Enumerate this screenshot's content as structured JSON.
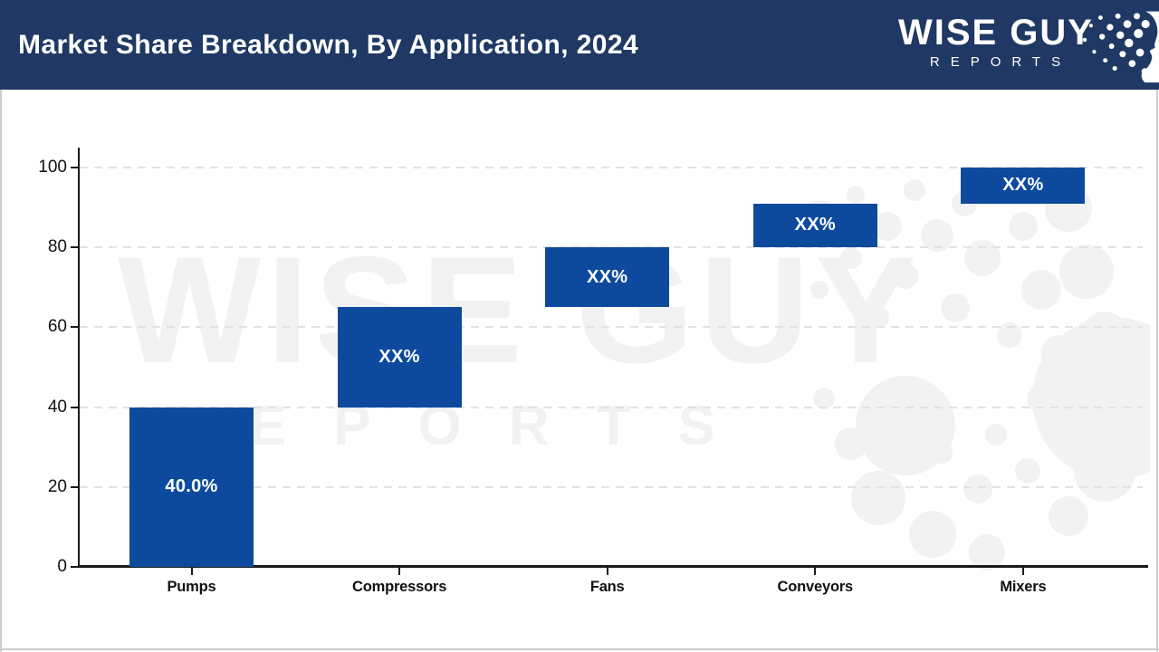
{
  "header": {
    "title": "Market Share Breakdown, By Application, 2024",
    "background": "#1f3864",
    "logo": {
      "primary": "WISE GUY",
      "secondary": "REPORTS",
      "face_icon": "dotted-face-profile"
    }
  },
  "watermark": {
    "primary": "WISE GUY",
    "secondary": "REPORTS",
    "color": "#f2f2f2"
  },
  "colors": {
    "header_background": "#1f3864",
    "bar": "#0d4a9e",
    "axis": "#1a1a1a",
    "gridline": "#e2e2e2",
    "content_border": "#cccccc",
    "bar_label": "#ffffff"
  },
  "chart_data": {
    "type": "bar",
    "subtype": "floating-waterfall",
    "title": "Market Share Breakdown, By Application, 2024",
    "categories": [
      "Pumps",
      "Compressors",
      "Fans",
      "Conveyors",
      "Mixers"
    ],
    "series": [
      {
        "name": "Market Share (%)",
        "segments": [
          {
            "category": "Pumps",
            "start": 0,
            "end": 40,
            "value": 40,
            "label": "40.0%"
          },
          {
            "category": "Compressors",
            "start": 40,
            "end": 65,
            "value": 25,
            "label": "XX%"
          },
          {
            "category": "Fans",
            "start": 65,
            "end": 80,
            "value": 15,
            "label": "XX%"
          },
          {
            "category": "Conveyors",
            "start": 80,
            "end": 91,
            "value": 11,
            "label": "XX%"
          },
          {
            "category": "Mixers",
            "start": 91,
            "end": 100,
            "value": 9,
            "label": "XX%"
          }
        ]
      }
    ],
    "yticks": [
      0,
      20,
      40,
      60,
      80,
      100
    ],
    "ylim": [
      0,
      105
    ],
    "xlabel": "",
    "ylabel": "",
    "grid": "horizontal-dashed",
    "legend": "none",
    "bar_color": "#0d4a9e",
    "bar_label_color": "#ffffff"
  }
}
